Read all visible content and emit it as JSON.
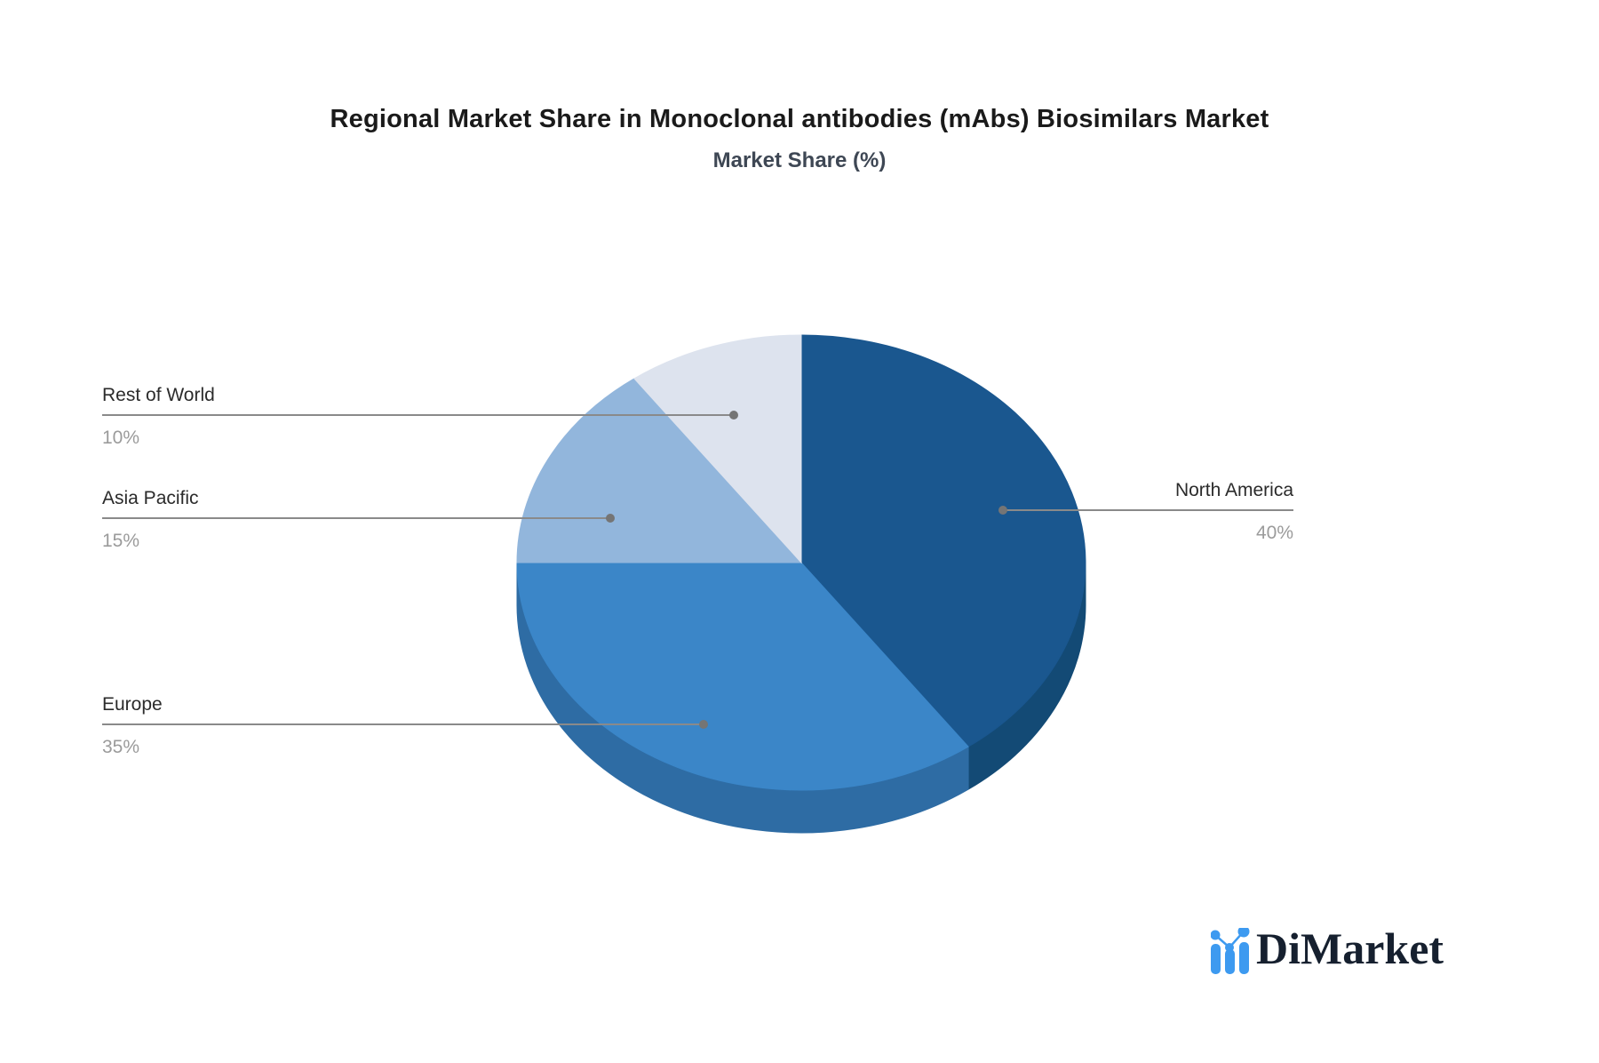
{
  "chart": {
    "title": "Regional Market Share in Monoclonal antibodies (mAbs) Biosimilars Market",
    "subtitle": "Market Share (%)"
  },
  "chart_data": {
    "type": "pie",
    "style": "3d",
    "title": "Regional Market Share in Monoclonal antibodies (mAbs) Biosimilars Market",
    "subtitle": "Market Share (%)",
    "unit": "%",
    "start_angle_deg": 0,
    "direction": "clockwise",
    "legend_position": "none",
    "labeling": "leader-lines",
    "slices": [
      {
        "label": "North America",
        "value": 40,
        "display_value": "40%",
        "color": "#1A578F",
        "side_color": "#134A75",
        "label_side": "right"
      },
      {
        "label": "Europe",
        "value": 35,
        "display_value": "35%",
        "color": "#3B86C8",
        "side_color": "#2E6CA4",
        "label_side": "left"
      },
      {
        "label": "Asia Pacific",
        "value": 15,
        "display_value": "15%",
        "color": "#92B6DC",
        "side_color": "#7FA7D0",
        "label_side": "left"
      },
      {
        "label": "Rest of World",
        "value": 10,
        "display_value": "10%",
        "color": "#DDE3EE",
        "side_color": "#C3CCDA",
        "label_side": "left"
      }
    ],
    "leader_line_color": "#8A8A8A",
    "leader_dot_color": "#757575",
    "label_color": "#2B2B2B",
    "value_color": "#9B9B9B"
  },
  "logo": {
    "text": "DiMarket",
    "icon": "bar-line-chart-icon",
    "icon_color": "#3D9AF0",
    "text_color": "#16202F"
  }
}
